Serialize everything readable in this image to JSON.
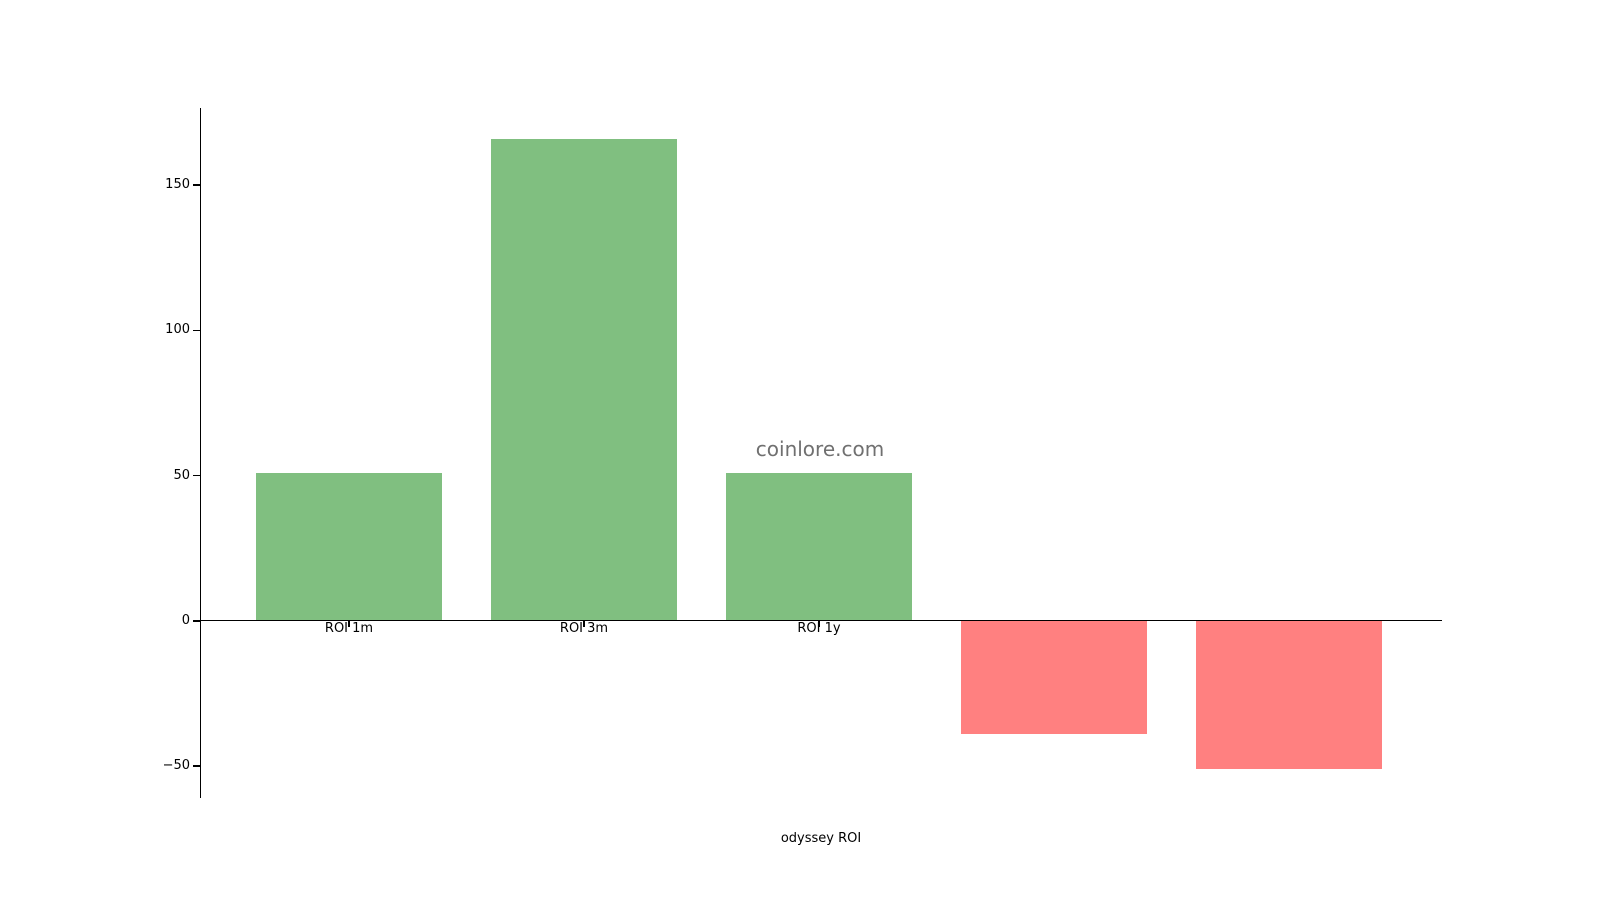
{
  "watermark": "coinlore.com",
  "chart_data": {
    "type": "bar",
    "title": "odyssey ROI",
    "categories": [
      "ROI 1m",
      "ROI 3m",
      "ROI 1y",
      "",
      ""
    ],
    "values": [
      51,
      166,
      51,
      -39,
      -51
    ],
    "series": [
      {
        "name": "odyssey ROI",
        "values": [
          51,
          166,
          51,
          -39,
          -51
        ]
      }
    ],
    "yticks": [
      150,
      100,
      50,
      0,
      -50
    ],
    "ytick_labels": [
      "150",
      "100",
      "50",
      "0",
      "−50"
    ],
    "ylim": [
      -61,
      176.5
    ],
    "xlabel": "",
    "ylabel": "",
    "grid": false,
    "legend": false,
    "colors": {
      "positive_bar": "#80bf80",
      "negative_bar": "#ff8080",
      "axis": "#000000",
      "text": "#000000",
      "watermark": "#707070"
    }
  }
}
